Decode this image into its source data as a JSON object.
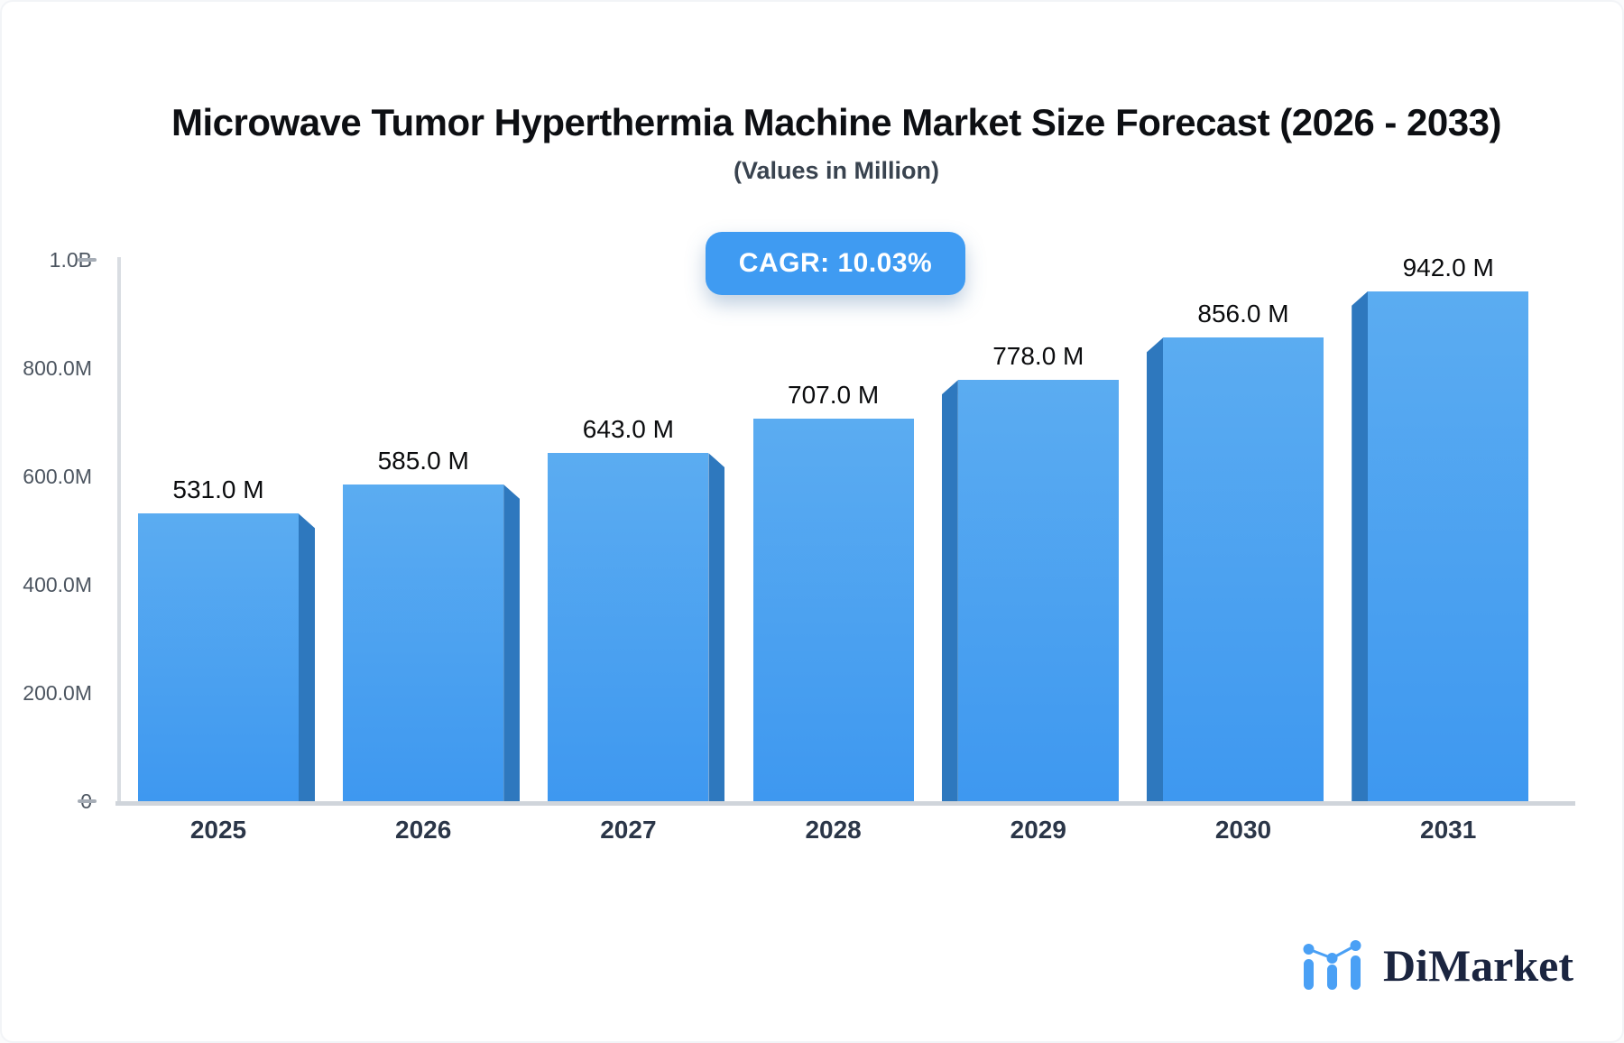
{
  "header": {
    "title": "Microwave Tumor Hyperthermia Machine Market Size Forecast (2026 - 2033)",
    "subtitle": "(Values in Million)"
  },
  "cagr_badge": {
    "label": "CAGR: 10.03%",
    "background": "#3F9BF2",
    "text_color": "#FFFFFF"
  },
  "chart_data": {
    "type": "bar",
    "title": "Microwave Tumor Hyperthermia Machine Market Size Forecast (2026 - 2033)",
    "subtitle": "(Values in Million)",
    "categories": [
      "2025",
      "2026",
      "2027",
      "2028",
      "2029",
      "2030",
      "2031"
    ],
    "values": [
      531,
      585,
      643,
      707,
      778,
      856,
      942
    ],
    "value_labels": [
      "531.0 M",
      "585.0 M",
      "643.0 M",
      "707.0 M",
      "778.0 M",
      "856.0 M",
      "942.0 M"
    ],
    "ylim": [
      0,
      1000
    ],
    "y_ticks": [
      {
        "label": "1.0B",
        "value": 1000,
        "dash": true
      },
      {
        "label": "800.0M",
        "value": 800,
        "dash": false
      },
      {
        "label": "600.0M",
        "value": 600,
        "dash": false
      },
      {
        "label": "400.0M",
        "value": 400,
        "dash": false
      },
      {
        "label": "200.0M",
        "value": 200,
        "dash": false
      },
      {
        "label": "0",
        "value": 0,
        "dash": true
      }
    ],
    "grid": false,
    "legend": false,
    "annotations": [
      {
        "text": "CAGR: 10.03%"
      }
    ],
    "colors": {
      "bar_top": "#5BACF1",
      "bar_bottom": "#3E98F0",
      "bar_side": "#2E78BE",
      "axis_line": "#D9DDE2",
      "tick_text": "#4C5560",
      "category_text": "#2B3648",
      "value_text": "#0B0C0E"
    }
  },
  "logo": {
    "text": "DiMarket",
    "icon": "mini-bar-chart-icon",
    "icon_color": "#4AA0F5",
    "text_color": "#1B2540"
  }
}
